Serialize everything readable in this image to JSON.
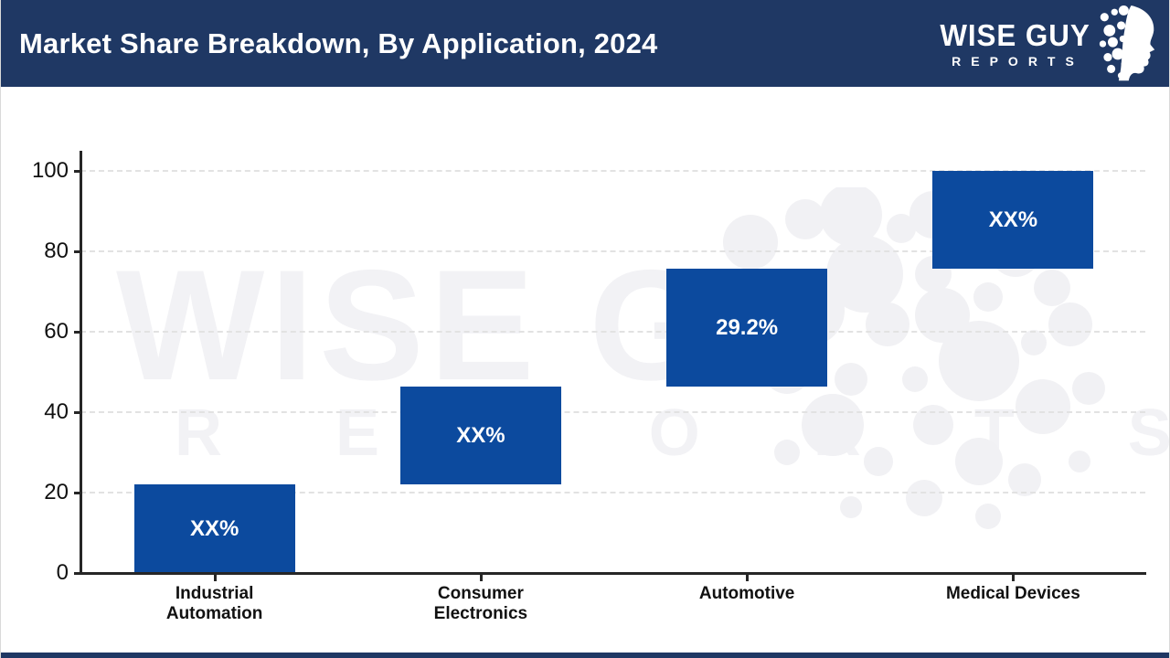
{
  "page": {
    "header": {
      "title": "Market Share Breakdown, By Application, 2024",
      "logo_line1": "WISE GUY",
      "logo_line2": "REPORTS"
    },
    "watermark": {
      "big_text": "WISE GU",
      "small_text": "R E P O R T S"
    }
  },
  "chart_data": {
    "type": "bar",
    "subtype": "waterfall",
    "title": "Market Share Breakdown, By Application, 2024",
    "categories": [
      "Industrial\nAutomation",
      "Consumer\nElectronics",
      "Automotive",
      "Medical Devices"
    ],
    "segments": [
      {
        "category": "Industrial Automation",
        "start": 0,
        "end": 22,
        "value": 22,
        "value_label": "XX%"
      },
      {
        "category": "Consumer Electronics",
        "start": 22,
        "end": 46.4,
        "value": 24.4,
        "value_label": "XX%"
      },
      {
        "category": "Automotive",
        "start": 46.4,
        "end": 75.6,
        "value": 29.2,
        "value_label": "29.2%"
      },
      {
        "category": "Medical Devices",
        "start": 75.6,
        "end": 100,
        "value": 24.4,
        "value_label": "XX%"
      }
    ],
    "y_ticks": [
      0,
      20,
      40,
      60,
      80,
      100
    ],
    "ylim": [
      0,
      100
    ],
    "xlabel": "",
    "ylabel": "",
    "legend": "none",
    "grid": "dashed-horizontal",
    "bar_color": "#0c4a9e",
    "bar_label_color": "#ffffff",
    "axis_color": "#262626",
    "header_color": "#1f3864"
  }
}
